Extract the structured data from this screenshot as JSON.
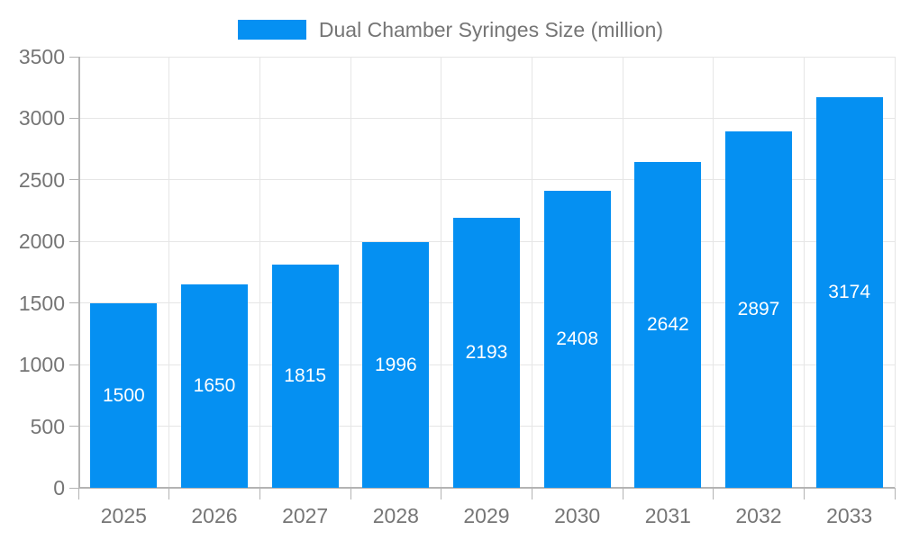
{
  "chart_data": {
    "type": "bar",
    "title": "Dual Chamber Syringes Size (million)",
    "legend": [
      "Dual Chamber Syringes Size (million)"
    ],
    "legend_position": "top-center",
    "categories": [
      "2025",
      "2026",
      "2027",
      "2028",
      "2029",
      "2030",
      "2031",
      "2032",
      "2033"
    ],
    "values": [
      1500,
      1650,
      1815,
      1996,
      2193,
      2408,
      2642,
      2897,
      3174
    ],
    "xlabel": "",
    "ylabel": "",
    "ylim": [
      0,
      3500
    ],
    "yticks": [
      0,
      500,
      1000,
      1500,
      2000,
      2500,
      3000,
      3500
    ],
    "grid": true,
    "value_labels": "inside-center"
  },
  "colors": {
    "bar": "#0590f2",
    "axis_label": "#757575",
    "legend_label": "#757575",
    "value_label": "#ffffff",
    "grid_line": "#e6e6e6",
    "axis_line": "#b3b3b3",
    "background": "#ffffff"
  }
}
